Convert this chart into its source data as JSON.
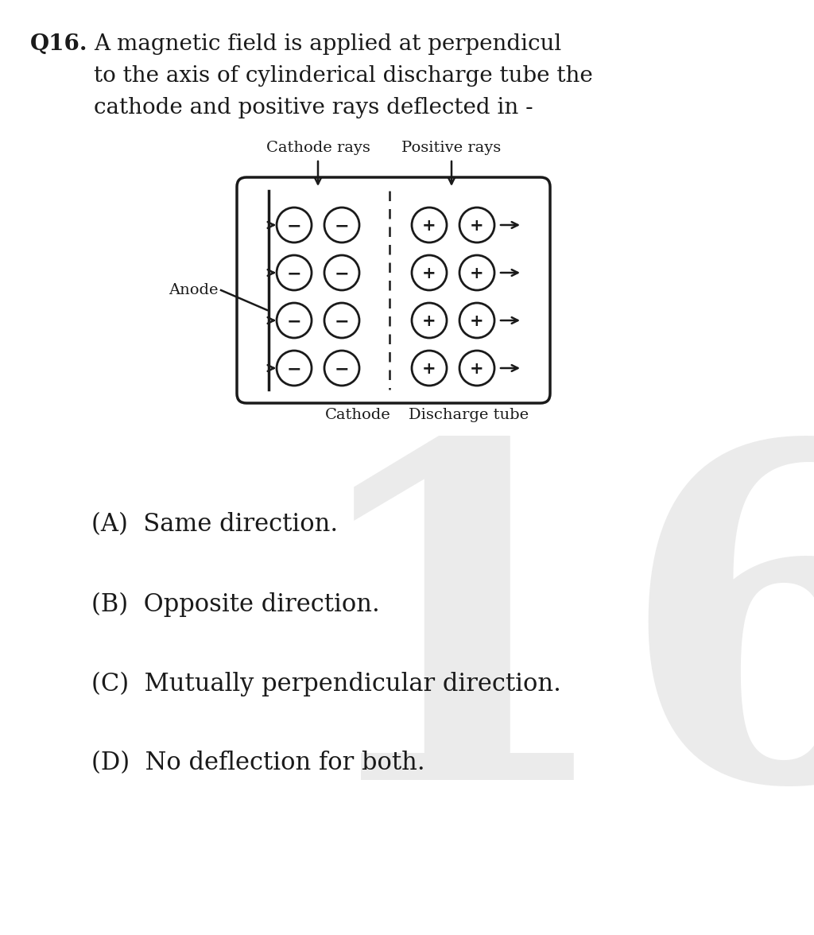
{
  "bg_color": "#ffffff",
  "title_q": "Q16.",
  "title_line1": "A magnetic field is applied at perpendicul",
  "title_line2": "to the axis of cylinderical discharge tube thе",
  "title_line3": "cathode and positive rays deflected in -",
  "options": [
    "(A)  Same direction.",
    "(B)  Opposite direction.",
    "(C)  Mutually perpendicular direction.",
    "(D)  No deflection for both."
  ],
  "label_cathode_rays": "Cathode rays",
  "label_positive_rays": "Positive rays",
  "label_anode": "Anode",
  "label_cathode": "Cathode",
  "label_discharge_tube": "Discharge tube",
  "text_color": "#1a1a1a",
  "diagram_color": "#1a1a1a",
  "watermark_color": "#d8d8d8",
  "title_fontsize": 20,
  "option_fontsize": 22,
  "diagram_label_fontsize": 14
}
